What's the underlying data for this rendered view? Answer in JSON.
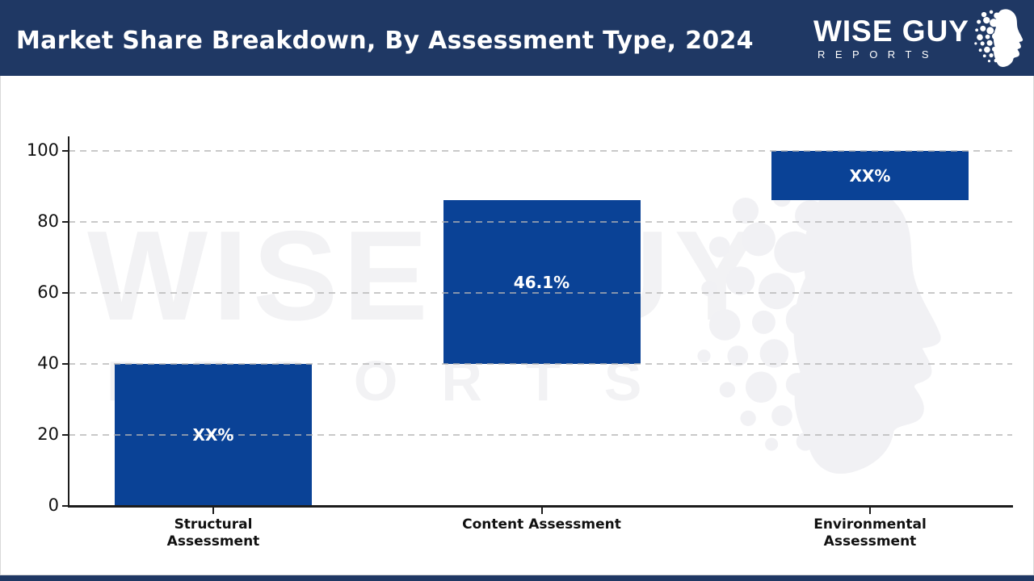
{
  "header": {
    "title": "Market Share Breakdown, By Assessment Type, 2024",
    "logo": {
      "line1": "WISE GUY",
      "line2": "REPORTS"
    }
  },
  "watermark": {
    "line1": "WISE GUY",
    "line2": "REPORTS"
  },
  "chart_data": {
    "type": "bar",
    "variant": "floating-segment-bars",
    "title": "Market Share Breakdown, By Assessment Type, 2024",
    "categories": [
      "Structural Assessment",
      "Content Assessment",
      "Environmental Assessment"
    ],
    "category_lines": [
      "Structural\nAssessment",
      "Content Assessment",
      "Environmental\nAssessment"
    ],
    "segments": [
      {
        "category": "Structural Assessment",
        "from": 0,
        "to": 40,
        "label": "XX%"
      },
      {
        "category": "Content Assessment",
        "from": 40,
        "to": 86.1,
        "label": "46.1%"
      },
      {
        "category": "Environmental Assessment",
        "from": 86.1,
        "to": 100,
        "label": "XX%"
      }
    ],
    "yticks": [
      0,
      20,
      40,
      60,
      80,
      100
    ],
    "ylim": [
      0,
      104
    ],
    "xlabel": "",
    "ylabel": "",
    "grid": "horizontal-dashed",
    "legend": "none",
    "bar_color": "#0a4296",
    "bar_label_color": "#ffffff"
  },
  "colors": {
    "header_navy": "#1f3864",
    "bar_blue": "#0a4296",
    "watermark_gray": "#f2f2f4",
    "grid_gray": "#c8c8c8",
    "axis_dark": "#1c1c1c",
    "frame_border": "#d9d9d9"
  }
}
